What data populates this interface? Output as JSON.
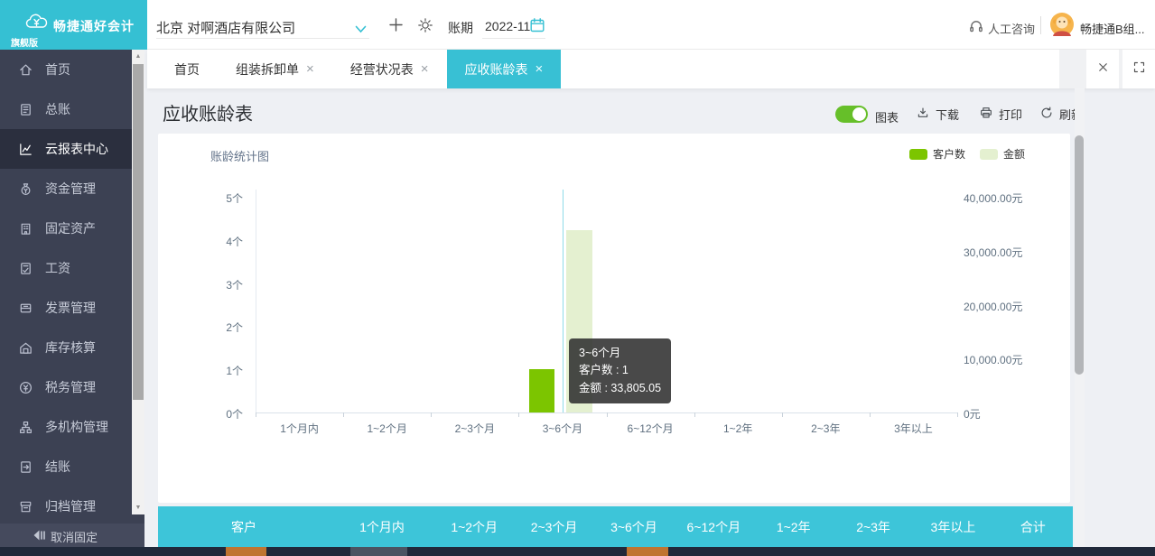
{
  "brand": {
    "name": "畅捷通好会计",
    "edition": "旗舰版"
  },
  "topbar": {
    "company": "北京 对啊酒店有限公司",
    "period_label": "账期",
    "period_value": "2022-11",
    "consult_label": "人工咨询",
    "username": "畅捷通B组..."
  },
  "sidebar": {
    "items": [
      {
        "label": "首页",
        "icon": "home-icon",
        "active": false
      },
      {
        "label": "总账",
        "icon": "ledger-icon",
        "active": false
      },
      {
        "label": "云报表中心",
        "icon": "report-chart-icon",
        "active": true
      },
      {
        "label": "资金管理",
        "icon": "money-bag-icon",
        "active": false
      },
      {
        "label": "固定资产",
        "icon": "building-icon",
        "active": false
      },
      {
        "label": "工资",
        "icon": "salary-icon",
        "active": false
      },
      {
        "label": "发票管理",
        "icon": "invoice-icon",
        "active": false
      },
      {
        "label": "库存核算",
        "icon": "inventory-icon",
        "active": false
      },
      {
        "label": "税务管理",
        "icon": "tax-icon",
        "active": false
      },
      {
        "label": "多机构管理",
        "icon": "org-icon",
        "active": false
      },
      {
        "label": "结账",
        "icon": "closing-icon",
        "active": false
      },
      {
        "label": "归档管理",
        "icon": "archive-icon",
        "active": false
      }
    ],
    "unpin_label": "取消固定"
  },
  "tabs": [
    {
      "label": "首页",
      "closable": false,
      "active": false
    },
    {
      "label": "组装拆卸单",
      "closable": true,
      "active": false
    },
    {
      "label": "经营状况表",
      "closable": true,
      "active": false
    },
    {
      "label": "应收账龄表",
      "closable": true,
      "active": true
    }
  ],
  "page": {
    "title": "应收账龄表",
    "chart_toggle_label": "图表",
    "download_label": "下载",
    "print_label": "打印",
    "refresh_label": "刷新"
  },
  "chart_data": {
    "type": "bar",
    "title": "账龄统计图",
    "categories": [
      "1个月内",
      "1~2个月",
      "2~3个月",
      "3~6个月",
      "6~12个月",
      "1~2年",
      "2~3年",
      "3年以上"
    ],
    "series": [
      {
        "name": "客户数",
        "axis": "left",
        "color": "#7cc500",
        "values": [
          0,
          0,
          0,
          1,
          0,
          0,
          0,
          0
        ]
      },
      {
        "name": "金额",
        "axis": "right",
        "color": "#e4f0d0",
        "values": [
          0,
          0,
          0,
          33805.05,
          0,
          0,
          0,
          0
        ]
      }
    ],
    "left_axis": {
      "ticks": [
        "5个",
        "4个",
        "3个",
        "2个",
        "1个",
        "0个"
      ],
      "max": 5,
      "min": 0
    },
    "right_axis": {
      "ticks": [
        "40,000.00元",
        "30,000.00元",
        "20,000.00元",
        "10,000.00元",
        "0元"
      ],
      "max": 40000,
      "min": 0
    },
    "legend_position": "top-right",
    "grid": false,
    "highlight_category": "3~6个月",
    "tooltip": {
      "title": "3~6个月",
      "customers": "客户数 : 1",
      "amount": "金额 : 33,805.05"
    }
  },
  "table": {
    "headers": [
      "客户",
      "1个月内",
      "1~2个月",
      "2~3个月",
      "3~6个月",
      "6~12个月",
      "1~2年",
      "2~3年",
      "3年以上",
      "合计"
    ]
  },
  "colors": {
    "brand_cyan": "#35c0d3",
    "table_header_cyan": "#3dc5d9",
    "sidebar_bg": "#3c4153",
    "sidebar_active_bg": "#2b2f3e",
    "customers_bar": "#7cc500",
    "amount_bar": "#e4f0d0",
    "toggle_on": "#66bf29"
  }
}
